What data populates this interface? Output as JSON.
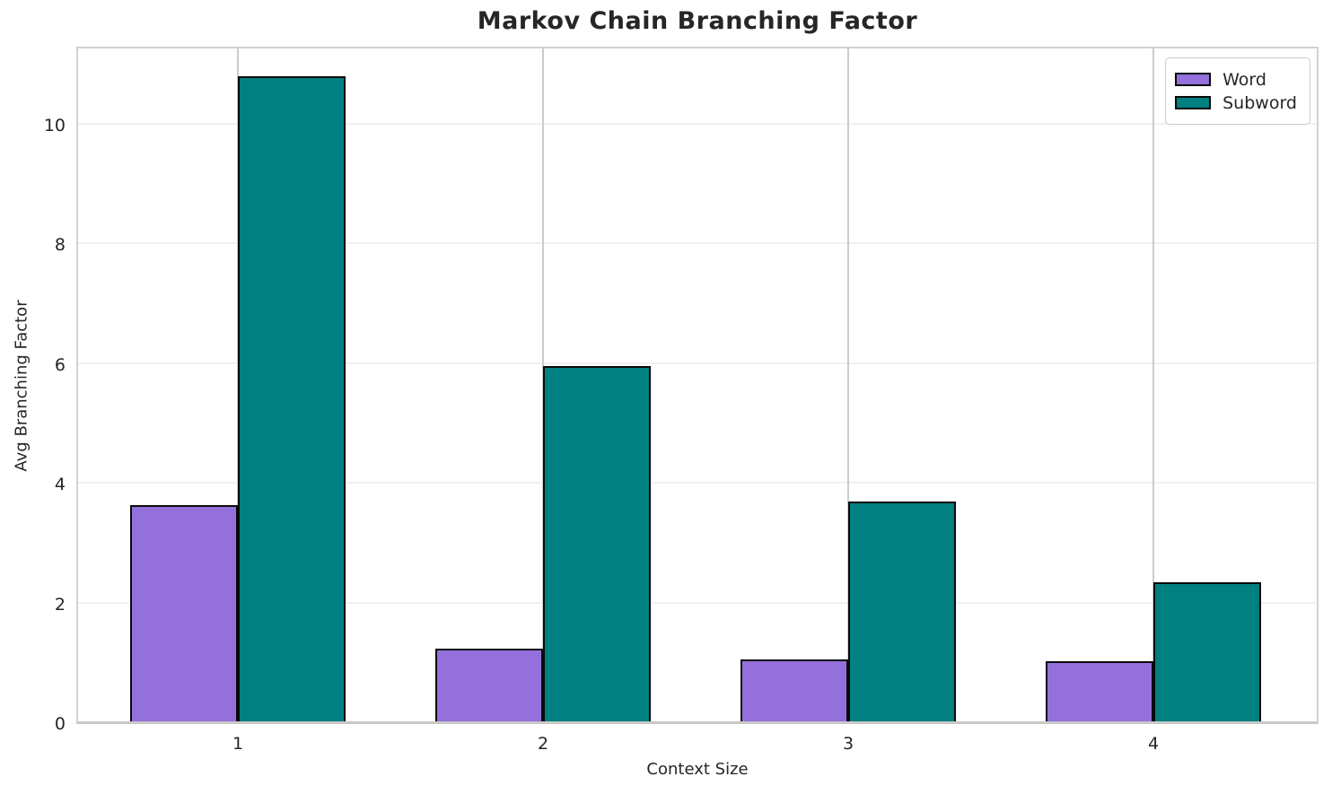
{
  "chart_data": {
    "type": "bar",
    "title": "Markov Chain Branching Factor",
    "xlabel": "Context Size",
    "ylabel": "Avg Branching Factor",
    "categories": [
      "1",
      "2",
      "3",
      "4"
    ],
    "series": [
      {
        "name": "Word",
        "color": "#9370DB",
        "values": [
          3.61,
          1.22,
          1.04,
          1.0
        ]
      },
      {
        "name": "Subword",
        "color": "#008080",
        "values": [
          10.78,
          5.94,
          3.67,
          2.32
        ]
      }
    ],
    "yticks": [
      0,
      2,
      4,
      6,
      8,
      10
    ],
    "ylim": [
      0,
      11.32
    ],
    "grid": true,
    "legend_position": "upper right",
    "bar_edge_color": "#0a0a0a",
    "colors": {
      "word_fill": "#9370DB",
      "subword_fill": "#008080",
      "grid_horizontal": "#f0f0f0",
      "grid_vertical": "#cccccc",
      "spine": "#d2d2d2",
      "text": "#262626"
    }
  }
}
